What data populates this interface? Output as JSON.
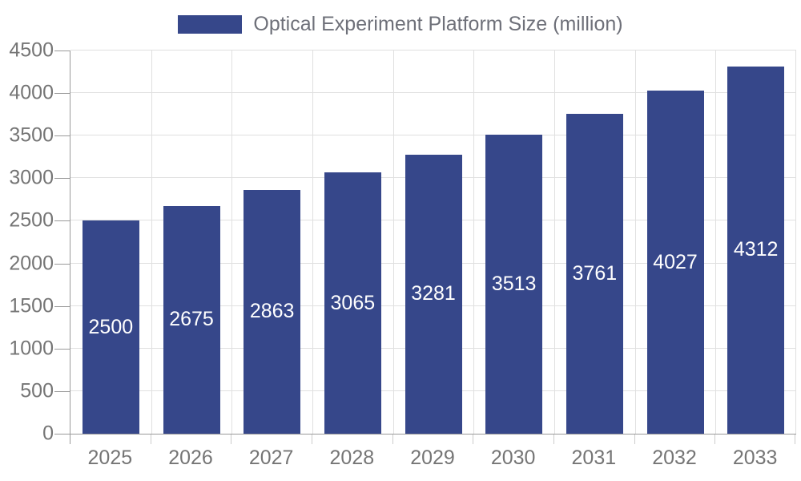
{
  "legend": {
    "label": "Optical Experiment Platform Size (million)"
  },
  "chart_data": {
    "type": "bar",
    "title": "Optical Experiment Platform Size (million)",
    "categories": [
      "2025",
      "2026",
      "2027",
      "2028",
      "2029",
      "2030",
      "2031",
      "2032",
      "2033"
    ],
    "values": [
      2500,
      2675,
      2863,
      3065,
      3281,
      3513,
      3761,
      4027,
      4312
    ],
    "series": [
      {
        "name": "Optical Experiment Platform Size (million)",
        "values": [
          2500,
          2675,
          2863,
          3065,
          3281,
          3513,
          3761,
          4027,
          4312
        ]
      }
    ],
    "xlabel": "",
    "ylabel": "",
    "ylim": [
      0,
      4500
    ],
    "yticks": [
      0,
      500,
      1000,
      1500,
      2000,
      2500,
      3000,
      3500,
      4000,
      4500
    ],
    "grid": true,
    "legend_position": "top-center",
    "value_labels": "centered-inside-bars"
  },
  "colors": {
    "background": "#FFFFFF",
    "bar": "#36478A",
    "gridline": "#E0E0E0",
    "axis_line": "#999999",
    "x_tick_mark": "#CCCCCC",
    "tick_label": "#757575",
    "legend_text": "#6E7079",
    "bar_value_text": "#FFFFFF"
  }
}
